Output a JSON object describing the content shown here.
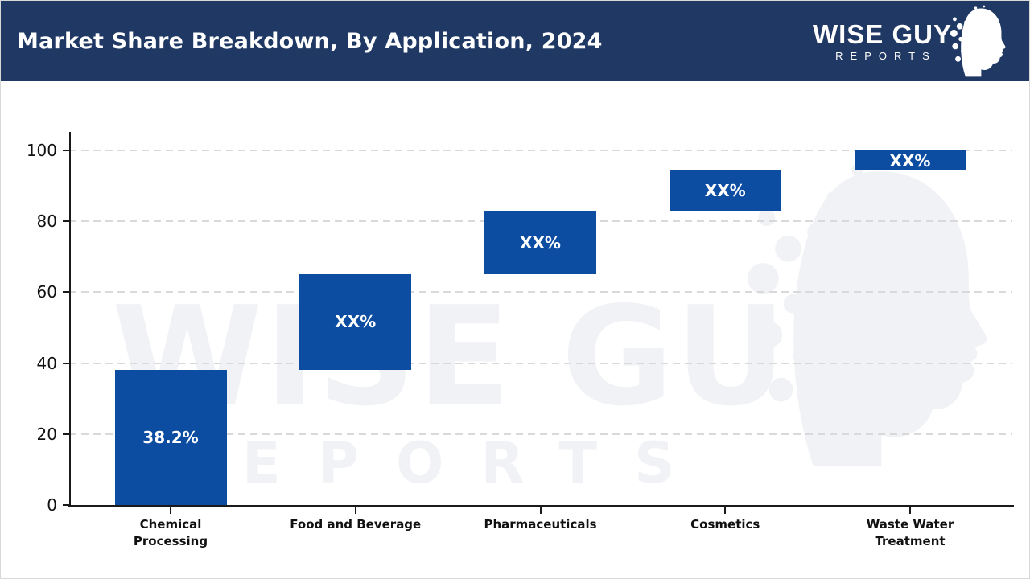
{
  "header": {
    "title": "Market Share Breakdown, By Application, 2024",
    "logo": {
      "line1": "WISE GUY",
      "line2": "REPORTS"
    }
  },
  "watermark": {
    "line1": "WISE GUY",
    "line2": "REPORTS"
  },
  "colors": {
    "header_bg": "#203864",
    "bar": "#0c4da2",
    "bar_label": "#ffffff",
    "axis": "#1a1a1a",
    "grid": "#d9d9d9",
    "watermark": "#f1f2f5",
    "title_text": "#ffffff"
  },
  "chart_data": {
    "type": "bar",
    "subtype": "waterfall",
    "title": "Market Share Breakdown, By Application, 2024",
    "categories": [
      "Chemical Processing",
      "Food and Beverage",
      "Pharmaceuticals",
      "Cosmetics",
      "Waste Water Treatment"
    ],
    "category_lines": [
      [
        "Chemical",
        "Processing"
      ],
      [
        "Food and Beverage"
      ],
      [
        "Pharmaceuticals"
      ],
      [
        "Cosmetics"
      ],
      [
        "Waste Water",
        "Treatment"
      ]
    ],
    "segments": [
      {
        "category": "Chemical Processing",
        "start": 0,
        "end": 38.2,
        "label": "38.2%"
      },
      {
        "category": "Food and Beverage",
        "start": 38.2,
        "end": 65,
        "label": "XX%"
      },
      {
        "category": "Pharmaceuticals",
        "start": 65,
        "end": 83,
        "label": "XX%"
      },
      {
        "category": "Cosmetics",
        "start": 83,
        "end": 94.3,
        "label": "XX%"
      },
      {
        "category": "Waste Water Treatment",
        "start": 94.3,
        "end": 100,
        "label": "XX%"
      }
    ],
    "xlabel": "",
    "ylabel": "",
    "ylim": [
      0,
      100
    ],
    "yticks": [
      0,
      20,
      40,
      60,
      80,
      100
    ],
    "grid": "dashed-horizontal",
    "legend": "none"
  }
}
